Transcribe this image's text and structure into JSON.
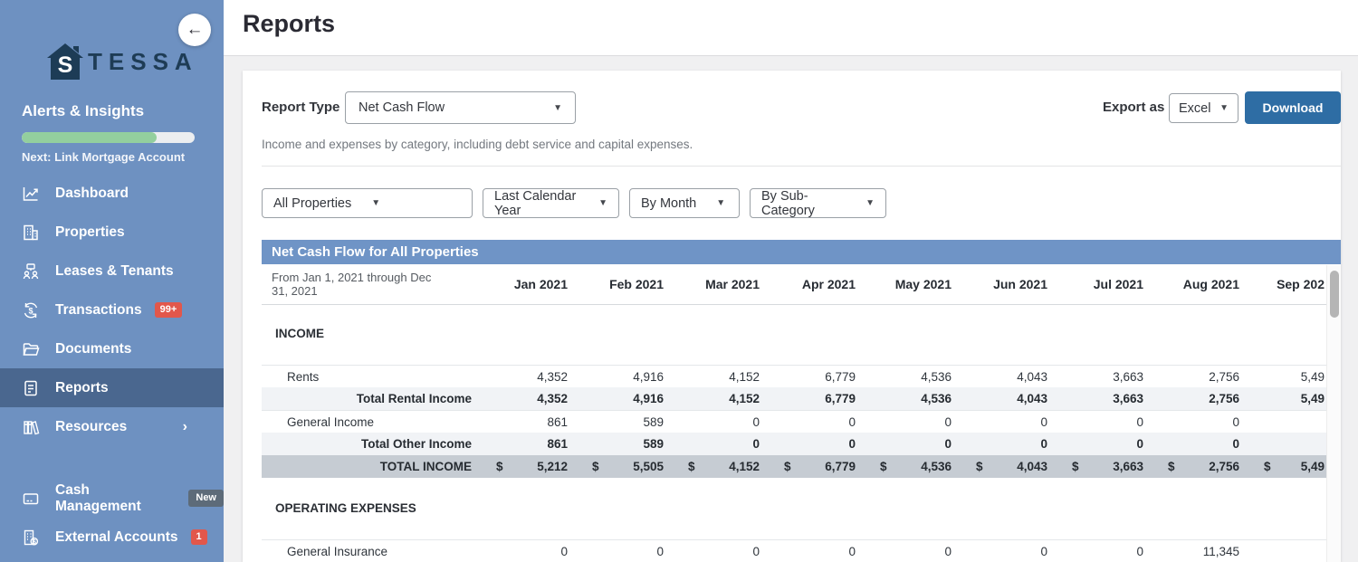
{
  "colors": {
    "accent": "#2e6da4",
    "sidebar": "#6e91c1",
    "sidebar_selected": "#4a678f",
    "report_bar": "#6f94c6",
    "badge_red": "#e2574b",
    "badge_gray": "#5d6b79",
    "progress_green": "#93cf9e",
    "total_row_bg": "#c6ccd3",
    "subtotal_row_bg": "#f1f3f6"
  },
  "sidebar": {
    "logo": {
      "house_letter": "S",
      "wordmark": "TESSA"
    },
    "back_icon": "←",
    "alerts": {
      "title": "Alerts & Insights",
      "progress_percent": 78,
      "next_label": "Next: Link Mortgage Account"
    },
    "items": [
      {
        "label": "Dashboard",
        "icon": "dashboard-icon"
      },
      {
        "label": "Properties",
        "icon": "properties-icon"
      },
      {
        "label": "Leases & Tenants",
        "icon": "leases-tenants-icon"
      },
      {
        "label": "Transactions",
        "icon": "transactions-icon",
        "badge": "99+"
      },
      {
        "label": "Documents",
        "icon": "documents-icon"
      },
      {
        "label": "Reports",
        "icon": "reports-icon",
        "selected": true
      },
      {
        "label": "Resources",
        "icon": "resources-icon",
        "chevron": "›"
      }
    ],
    "footer_items": [
      {
        "label": "Cash Management",
        "icon": "cash-management-icon",
        "badge": "New"
      },
      {
        "label": "External Accounts",
        "icon": "external-accounts-icon",
        "badge": "1"
      }
    ]
  },
  "header": {
    "title": "Reports"
  },
  "toolbar": {
    "report_type_label": "Report Type",
    "report_type_value": "Net Cash Flow",
    "description": "Income and expenses by category, including debt service and capital expenses.",
    "export_label": "Export as",
    "export_format": "Excel",
    "download_label": "Download"
  },
  "filters": [
    {
      "value": "All Properties"
    },
    {
      "value": "Last Calendar Year"
    },
    {
      "value": "By Month"
    },
    {
      "value": "By Sub-Category"
    }
  ],
  "report": {
    "title": "Net Cash Flow for All Properties",
    "date_range": "From Jan 1, 2021 through Dec 31, 2021",
    "months": [
      "Jan 2021",
      "Feb 2021",
      "Mar 2021",
      "Apr 2021",
      "May 2021",
      "Jun 2021",
      "Jul 2021",
      "Aug 2021",
      "Sep 202"
    ],
    "rows": [
      {
        "type": "section",
        "label": "INCOME"
      },
      {
        "type": "detail",
        "label": "Rents",
        "values": [
          "4,352",
          "4,916",
          "4,152",
          "6,779",
          "4,536",
          "4,043",
          "3,663",
          "2,756",
          "5,49"
        ]
      },
      {
        "type": "subtotal",
        "label": "Total Rental Income",
        "values": [
          "4,352",
          "4,916",
          "4,152",
          "6,779",
          "4,536",
          "4,043",
          "3,663",
          "2,756",
          "5,49"
        ]
      },
      {
        "type": "detail",
        "label": "General Income",
        "values": [
          "861",
          "589",
          "0",
          "0",
          "0",
          "0",
          "0",
          "0",
          ""
        ]
      },
      {
        "type": "subtotal",
        "label": "Total Other Income",
        "values": [
          "861",
          "589",
          "0",
          "0",
          "0",
          "0",
          "0",
          "0",
          ""
        ]
      },
      {
        "type": "total",
        "label": "TOTAL INCOME",
        "currency_symbol": "$",
        "values": [
          "5,212",
          "5,505",
          "4,152",
          "6,779",
          "4,536",
          "4,043",
          "3,663",
          "2,756",
          "5,49"
        ]
      },
      {
        "type": "section",
        "label": "OPERATING EXPENSES",
        "gap": 24
      },
      {
        "type": "detail",
        "label": "General Insurance",
        "gap": 25,
        "values": [
          "0",
          "0",
          "0",
          "0",
          "0",
          "0",
          "0",
          "11,345",
          ""
        ]
      }
    ]
  }
}
